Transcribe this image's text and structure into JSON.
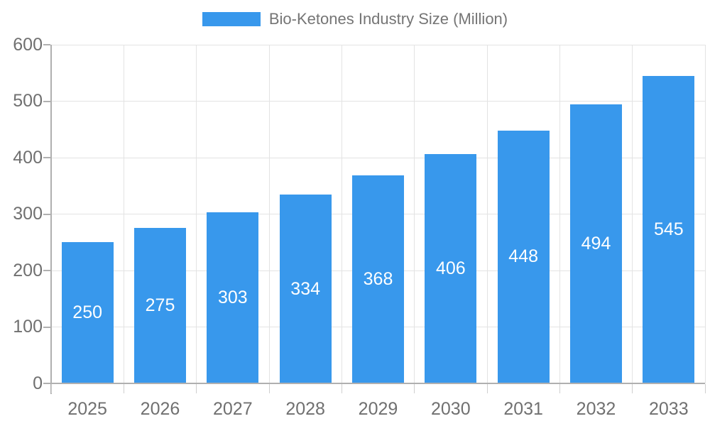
{
  "legend": {
    "series_label": "Bio-Ketones Industry Size (Million)"
  },
  "chart_data": {
    "type": "bar",
    "title": "Bio-Ketones Industry Size (Million)",
    "categories": [
      "2025",
      "2026",
      "2027",
      "2028",
      "2029",
      "2030",
      "2031",
      "2032",
      "2033"
    ],
    "values": [
      250,
      275,
      303,
      334,
      368,
      406,
      448,
      494,
      545
    ],
    "xlabel": "",
    "ylabel": "",
    "ylim": [
      0,
      600
    ],
    "yticks": [
      0,
      100,
      200,
      300,
      400,
      500,
      600
    ],
    "grid": true,
    "legend_position": "top-center",
    "bar_value_labels": "inside-center",
    "colors": {
      "bar": "#3898EC",
      "bar_label": "#FFFFFF",
      "axis_line": "#B0B0B0",
      "gridline": "#E3E3E3",
      "boundary_tick": "#CFCFCF",
      "tick_label": "#707070",
      "legend_text": "#757575",
      "background": "#FFFFFF"
    }
  }
}
